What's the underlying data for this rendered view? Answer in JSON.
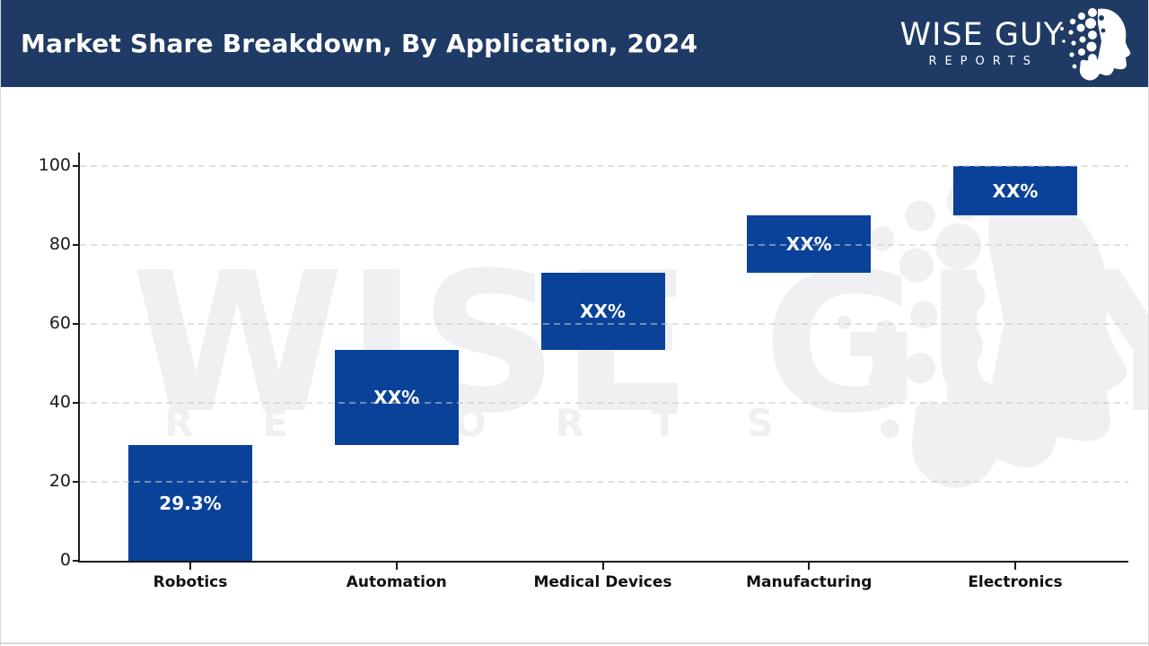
{
  "header": {
    "title": "Market Share Breakdown, By Application, 2024",
    "bg_color": "#1f3a64",
    "logo": {
      "line1": "WISE GUY",
      "line2": "REPORTS"
    }
  },
  "watermark": {
    "line1": "WISE GUY",
    "line2": "REPORTS"
  },
  "chart_data": {
    "type": "bar",
    "subtype": "waterfall",
    "title": "Market Share Breakdown, By Application, 2024",
    "categories": [
      "Robotics",
      "Automation",
      "Medical Devices",
      "Manufacturing",
      "Electronics"
    ],
    "values": [
      29.3,
      24.1,
      19.6,
      14.5,
      12.5
    ],
    "segments": [
      {
        "category": "Robotics",
        "start": 0,
        "end": 29.3,
        "label": "29.3%"
      },
      {
        "category": "Automation",
        "start": 29.3,
        "end": 53.4,
        "label": "XX%"
      },
      {
        "category": "Medical Devices",
        "start": 53.4,
        "end": 73.0,
        "label": "XX%"
      },
      {
        "category": "Manufacturing",
        "start": 73.0,
        "end": 87.5,
        "label": "XX%"
      },
      {
        "category": "Electronics",
        "start": 87.5,
        "end": 100,
        "label": "XX%"
      }
    ],
    "xlabel": "",
    "ylabel": "",
    "ylim": [
      0,
      100
    ],
    "yticks": [
      0,
      20,
      40,
      60,
      80,
      100
    ],
    "grid": "horizontal-dashed",
    "legend": "none",
    "bar_color": "#0a429a",
    "bar_label_color": "#ffffff",
    "axis_color": "#1a1a1a"
  }
}
